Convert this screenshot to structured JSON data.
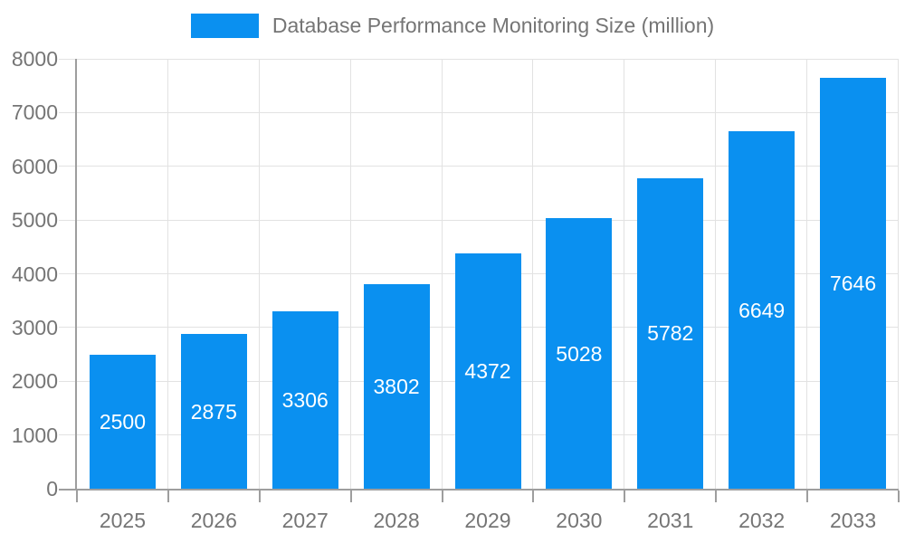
{
  "legend": {
    "label": "Database Performance Monitoring Size (million)"
  },
  "colors": {
    "bar": "#0a90f0",
    "axis_line": "#9e9e9e",
    "gridline": "#e2e2e2",
    "tick_label": "#757575",
    "bar_label": "#ffffff",
    "background": "#ffffff"
  },
  "chart_data": {
    "type": "bar",
    "title": "Database Performance Monitoring Size (million)",
    "categories": [
      "2025",
      "2026",
      "2027",
      "2028",
      "2029",
      "2030",
      "2031",
      "2032",
      "2033"
    ],
    "values": [
      2500,
      2875,
      3306,
      3802,
      4372,
      5028,
      5782,
      6649,
      7646
    ],
    "series": [
      {
        "name": "Database Performance Monitoring Size (million)",
        "values": [
          2500,
          2875,
          3306,
          3802,
          4372,
          5028,
          5782,
          6649,
          7646
        ]
      }
    ],
    "xlabel": "",
    "ylabel": "",
    "ylim": [
      0,
      8000
    ],
    "ytick_interval": 1000,
    "yticks": [
      0,
      1000,
      2000,
      3000,
      4000,
      5000,
      6000,
      7000,
      8000
    ],
    "grid": true,
    "legend_position": "top-center",
    "value_labels": "inside-center"
  }
}
